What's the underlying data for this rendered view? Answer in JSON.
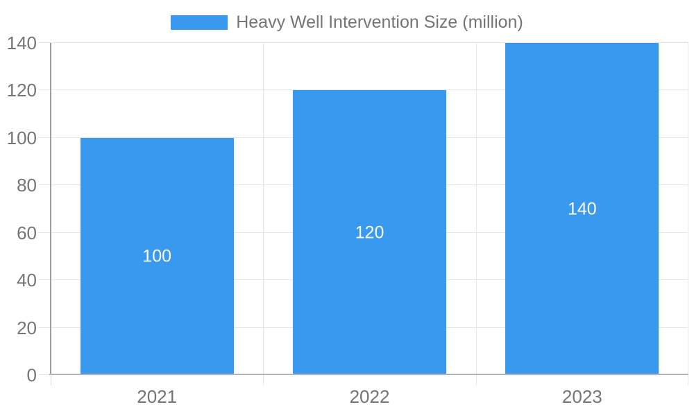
{
  "chart_data": {
    "type": "bar",
    "title": "Heavy Well Intervention Size (million)",
    "categories": [
      "2021",
      "2022",
      "2023"
    ],
    "values": [
      100,
      120,
      140
    ],
    "bar_value_labels": [
      "100",
      "120",
      "140"
    ],
    "xlabel": "",
    "ylabel": "",
    "ylim": [
      0,
      140
    ],
    "yticks": [
      0,
      20,
      40,
      60,
      80,
      100,
      120,
      140
    ],
    "grid": true,
    "legend_position": "top",
    "colors": {
      "bar": "#3899ee",
      "bar_label_text": "#ffffff",
      "axis_text": "#757575",
      "legend_text": "#757575",
      "gridline": "#e6e6e6",
      "tick": "#d9d9d9",
      "axis_line": "#9e9e9e",
      "baseline": "#b3b3b3",
      "background": "#ffffff"
    }
  }
}
